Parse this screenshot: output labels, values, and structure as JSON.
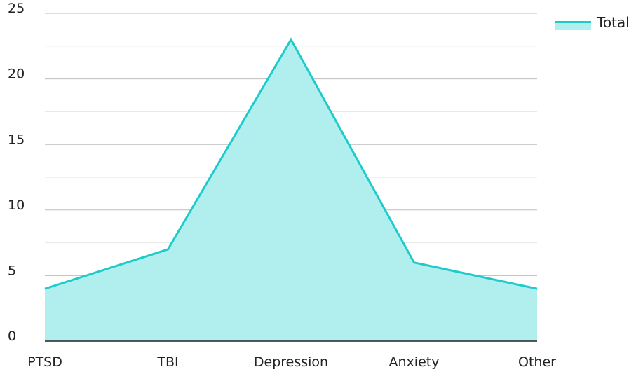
{
  "chart_data": {
    "type": "area",
    "categories": [
      "PTSD",
      "TBI",
      "Depression",
      "Anxiety",
      "Other"
    ],
    "series": [
      {
        "name": "Total",
        "values": [
          4,
          7,
          23,
          6,
          4
        ]
      }
    ],
    "title": "",
    "xlabel": "",
    "ylabel": "",
    "ylim": [
      0,
      25
    ],
    "yticks": [
      0,
      5,
      10,
      15,
      20,
      25
    ],
    "grid": true,
    "minor_grid": true,
    "legend_position": "top-right",
    "colors": {
      "line": "#1ECBCB",
      "fill": "#B1EEEE",
      "major_grid": "#BDBDBD",
      "minor_grid": "#E6E6E6",
      "baseline": "#222222"
    }
  }
}
